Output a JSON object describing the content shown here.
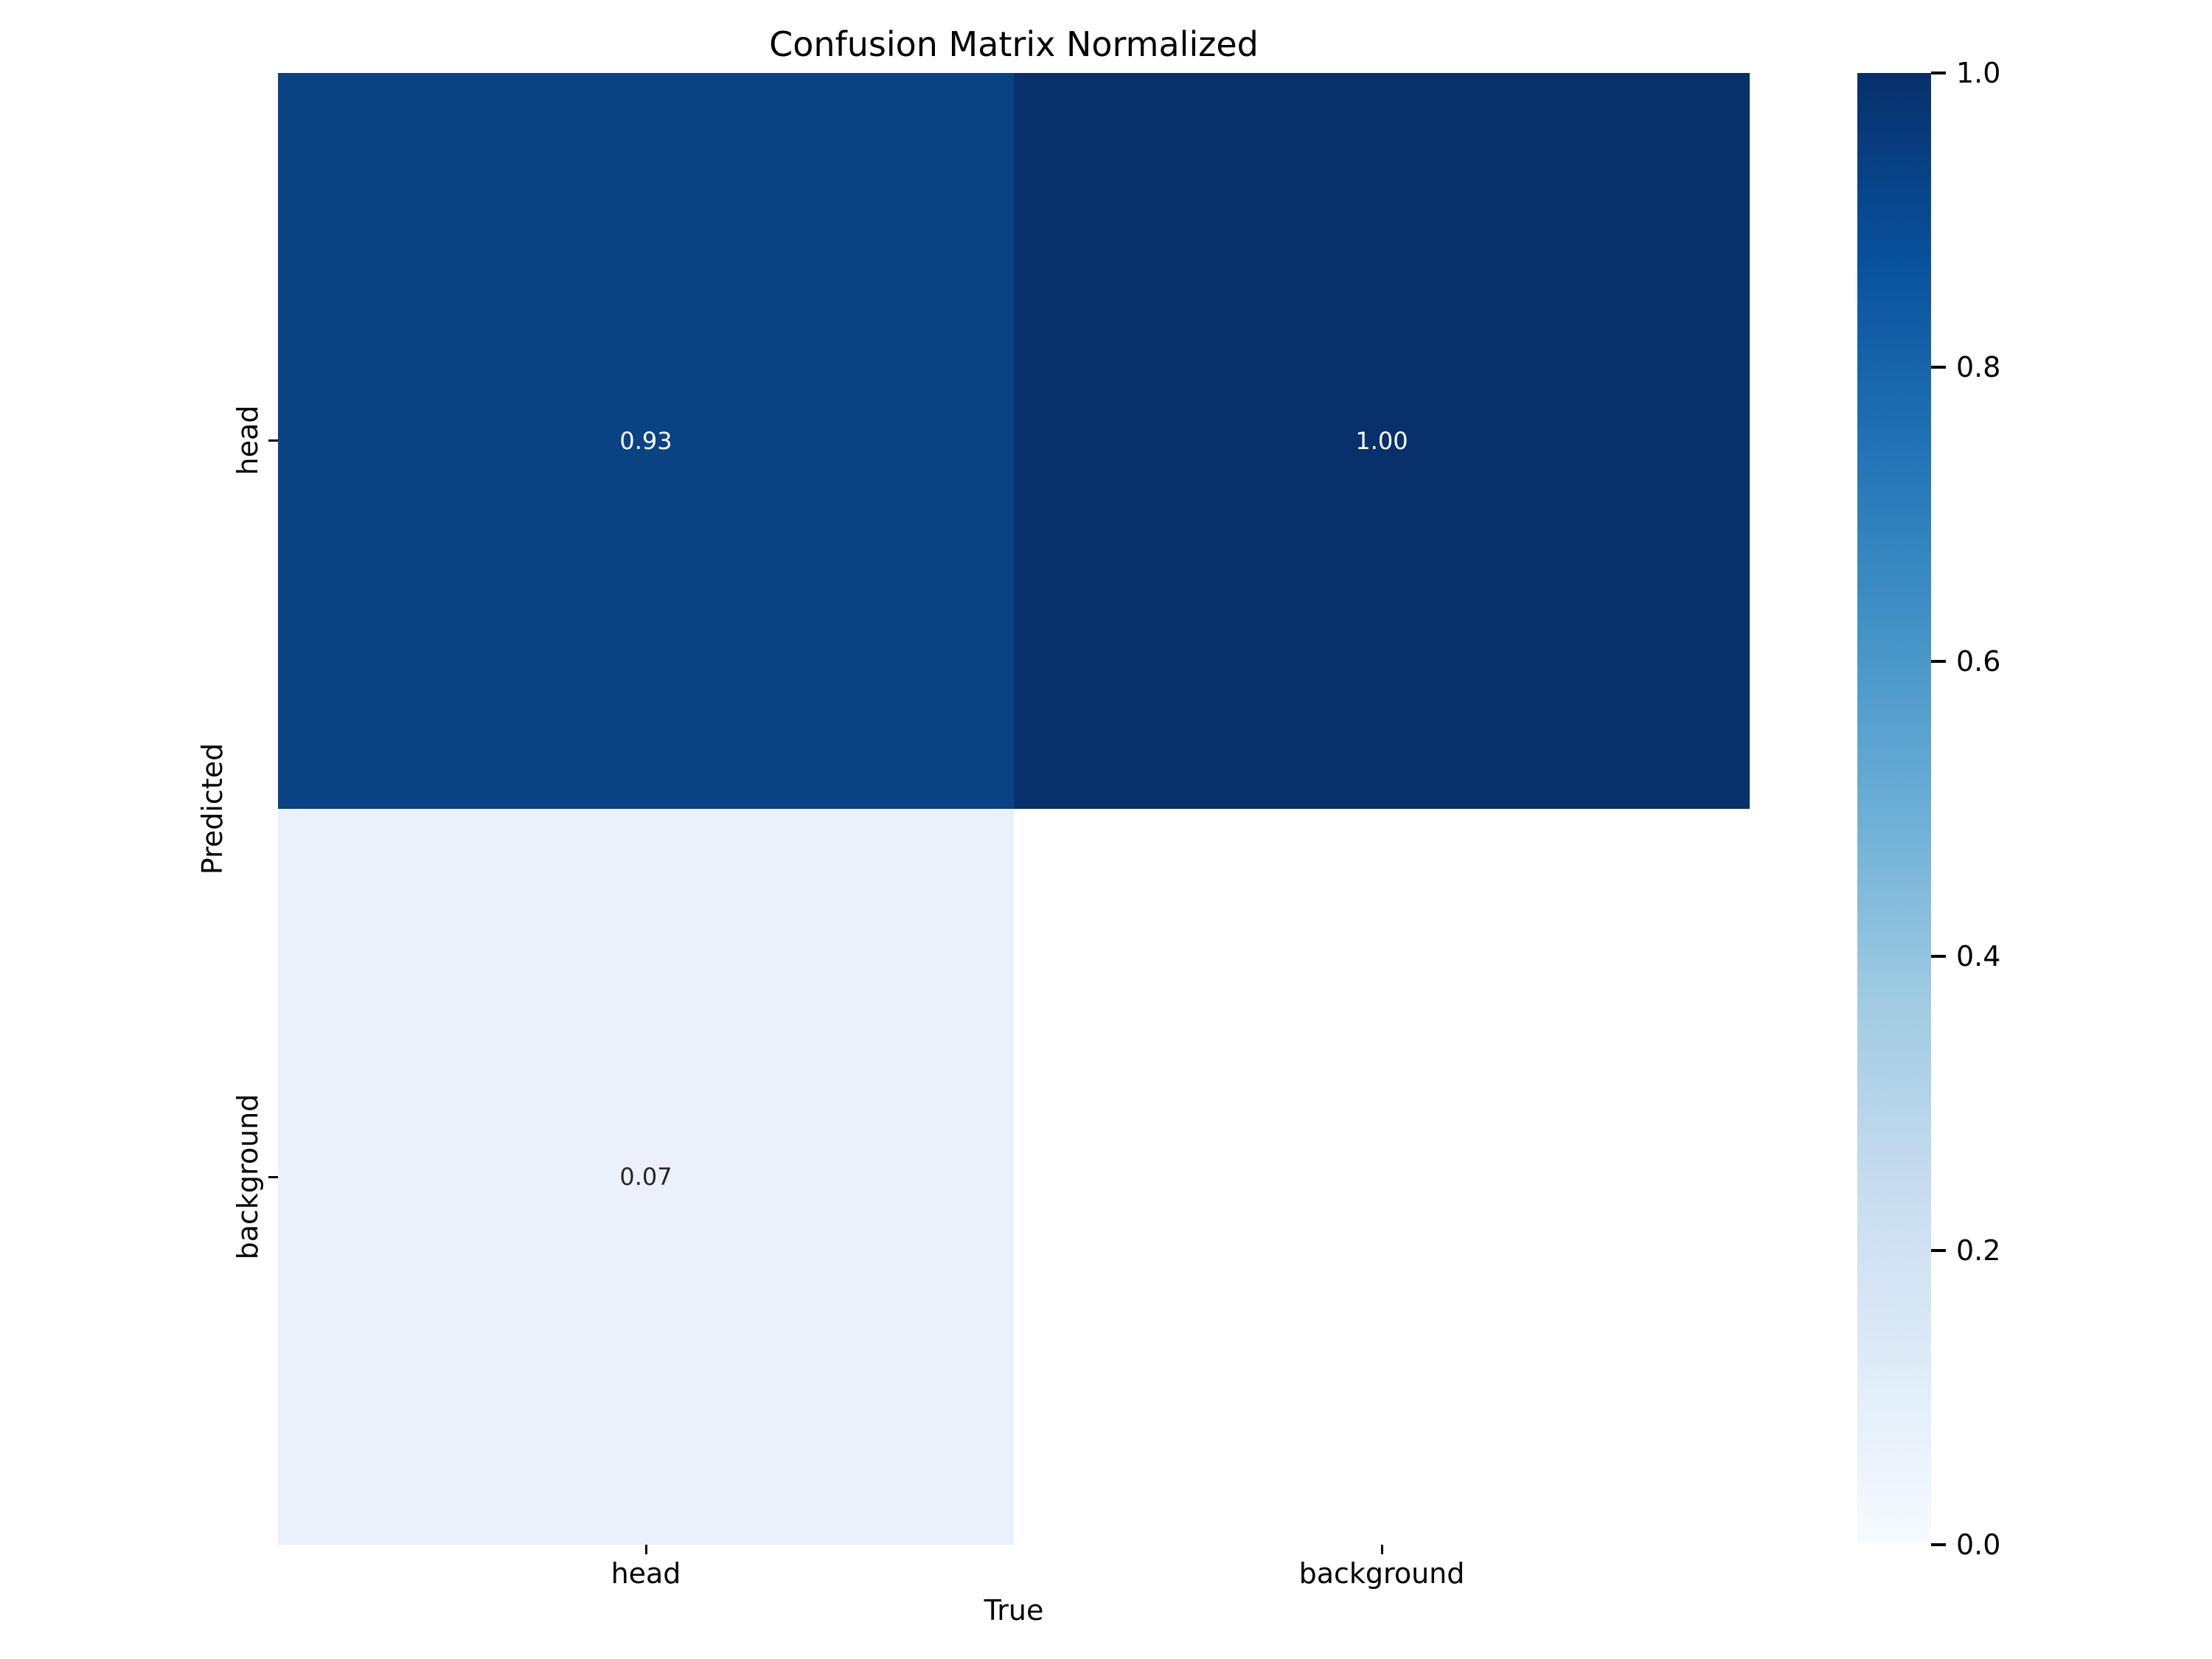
{
  "figure": {
    "background": "#ffffff"
  },
  "chart_data": {
    "type": "heatmap",
    "title": "Confusion Matrix Normalized",
    "xlabel": "True",
    "ylabel": "Predicted",
    "x_categories": [
      "head",
      "background"
    ],
    "y_categories": [
      "head",
      "background"
    ],
    "matrix": [
      [
        0.93,
        1.0
      ],
      [
        0.07,
        null
      ]
    ],
    "cell_labels": [
      [
        "0.93",
        "1.00"
      ],
      [
        "0.07",
        ""
      ]
    ],
    "cell_colors": [
      [
        "#0a4384",
        "#08306b"
      ],
      [
        "#eaf1fb",
        "#ffffff"
      ]
    ],
    "cell_text_colors": [
      [
        "#ffffff",
        "#ffffff"
      ],
      [
        "#262626",
        "#262626"
      ]
    ],
    "colormap": "Blues",
    "colormap_stops": [
      "#f7fbff",
      "#deebf7",
      "#c6dbef",
      "#9ecae1",
      "#6baed6",
      "#4292c6",
      "#2171b5",
      "#08519c",
      "#08306b"
    ],
    "value_range": [
      0.0,
      1.0
    ],
    "grid": false,
    "legend": "none",
    "colorbar": {
      "min": 0.0,
      "max": 1.0,
      "position": "right",
      "tick_labels": [
        "0.0",
        "0.2",
        "0.4",
        "0.6",
        "0.8",
        "1.0"
      ]
    }
  }
}
